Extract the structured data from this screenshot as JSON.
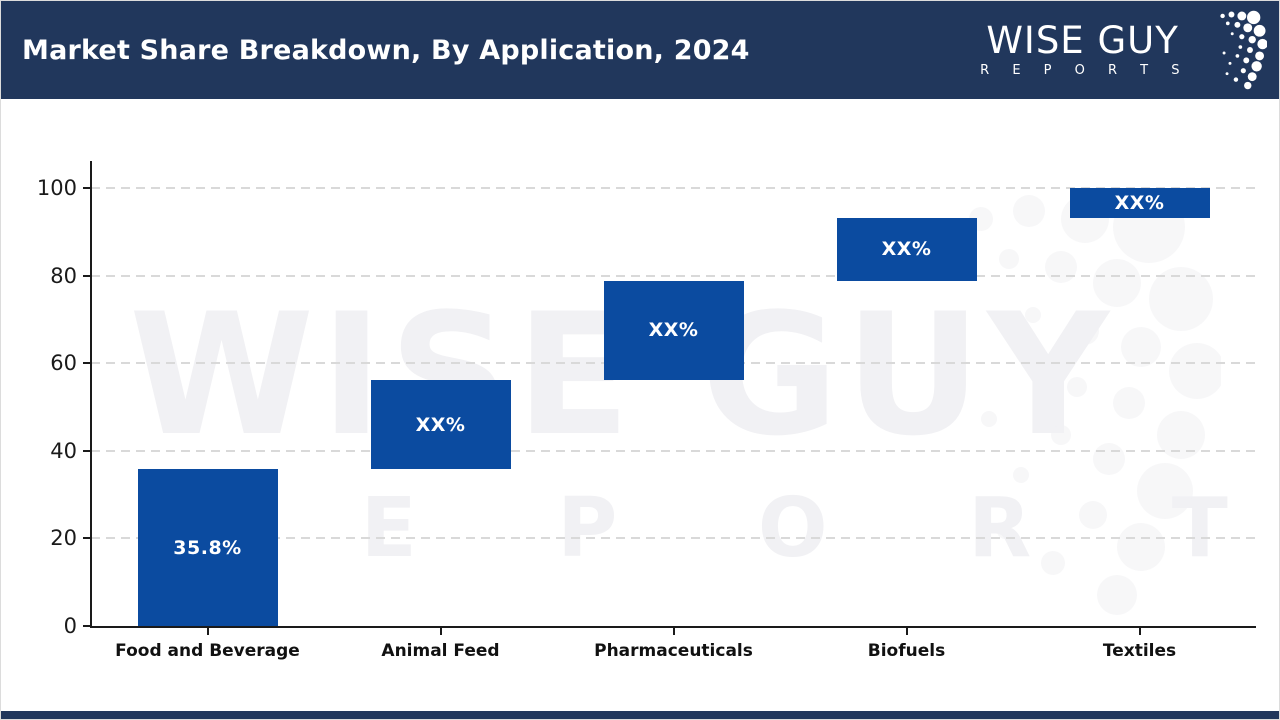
{
  "header": {
    "title": "Market Share Breakdown, By Application, 2024",
    "logo": {
      "line1": "WISE GUY",
      "line2": "R E P O R T S"
    }
  },
  "watermark": {
    "line1": "WISE GUY",
    "line2": "R E P O R T S"
  },
  "colors": {
    "header_bg": "#21375c",
    "bar": "#0b4ba0",
    "grid": "#d9d9d9",
    "axis": "#1a1a1a",
    "watermark": "#f1f1f4"
  },
  "chart_data": {
    "type": "bar",
    "variant": "waterfall-percent",
    "title": "Market Share Breakdown, By Application, 2024",
    "xlabel": "",
    "ylabel": "",
    "ylim": [
      0,
      106
    ],
    "yticks": [
      0,
      20,
      40,
      60,
      80,
      100
    ],
    "grid": "dashed-horizontal",
    "legend": "none",
    "categories": [
      "Food and Beverage",
      "Animal Feed",
      "Pharmaceuticals",
      "Biofuels",
      "Textiles"
    ],
    "segments": [
      {
        "category": "Food and Beverage",
        "start": 0,
        "end": 35.8,
        "label": "35.8%"
      },
      {
        "category": "Animal Feed",
        "start": 35.8,
        "end": 56.2,
        "label": "XX%"
      },
      {
        "category": "Pharmaceuticals",
        "start": 56.2,
        "end": 78.8,
        "label": "XX%"
      },
      {
        "category": "Biofuels",
        "start": 78.8,
        "end": 93.2,
        "label": "XX%"
      },
      {
        "category": "Textiles",
        "start": 93.2,
        "end": 100,
        "label": "XX%"
      }
    ]
  }
}
